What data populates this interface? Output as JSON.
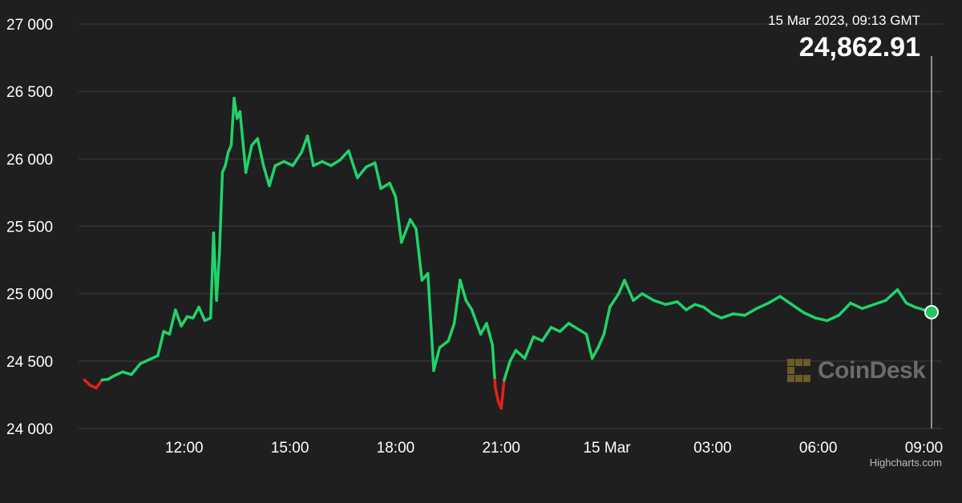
{
  "header": {
    "date": "15 Mar 2023, 09:13 GMT",
    "price": "24,862.91"
  },
  "watermark": {
    "text": "CoinDesk",
    "icon": "coindesk-logo-icon"
  },
  "credit": "Highcharts.com",
  "colors": {
    "background": "#1f1f1f",
    "line_up": "#20d36a",
    "line_down": "#e5201e",
    "marker_fill": "#23c55e",
    "gridline": "#3d3d3d"
  },
  "chart_data": {
    "type": "line",
    "title": "",
    "xlabel": "",
    "ylabel": "",
    "ylim": [
      24000,
      27000
    ],
    "xlim": [
      "2023-03-14 09:00",
      "2023-03-15 09:13"
    ],
    "grid": true,
    "legend": "none",
    "yticks": [
      {
        "value": 24000,
        "label": "24 000"
      },
      {
        "value": 24500,
        "label": "24 500"
      },
      {
        "value": 25000,
        "label": "25 000"
      },
      {
        "value": 25500,
        "label": "25 500"
      },
      {
        "value": 26000,
        "label": "26 000"
      },
      {
        "value": 26500,
        "label": "26 500"
      },
      {
        "value": 27000,
        "label": "27 000"
      }
    ],
    "xticks": [
      {
        "value": "2023-03-14 12:00",
        "label": "12:00"
      },
      {
        "value": "2023-03-14 15:00",
        "label": "15:00"
      },
      {
        "value": "2023-03-14 18:00",
        "label": "18:00"
      },
      {
        "value": "2023-03-14 21:00",
        "label": "21:00"
      },
      {
        "value": "2023-03-15 00:00",
        "label": "15 Mar"
      },
      {
        "value": "2023-03-15 03:00",
        "label": "03:00"
      },
      {
        "value": "2023-03-15 06:00",
        "label": "06:00"
      },
      {
        "value": "2023-03-15 09:00",
        "label": "09:00"
      }
    ],
    "threshold": 24360,
    "series": [
      {
        "points": [
          [
            "2023-03-14 09:10",
            24360
          ],
          [
            "2023-03-14 09:20",
            24320
          ],
          [
            "2023-03-14 09:30",
            24300
          ],
          [
            "2023-03-14 09:40",
            24360
          ],
          [
            "2023-03-14 09:50",
            24365
          ],
          [
            "2023-03-14 10:00",
            24390
          ],
          [
            "2023-03-14 10:15",
            24420
          ],
          [
            "2023-03-14 10:30",
            24400
          ],
          [
            "2023-03-14 10:45",
            24480
          ],
          [
            "2023-03-14 11:00",
            24510
          ],
          [
            "2023-03-14 11:15",
            24540
          ],
          [
            "2023-03-14 11:25",
            24720
          ],
          [
            "2023-03-14 11:35",
            24700
          ],
          [
            "2023-03-14 11:45",
            24880
          ],
          [
            "2023-03-14 11:55",
            24760
          ],
          [
            "2023-03-14 12:05",
            24830
          ],
          [
            "2023-03-14 12:15",
            24820
          ],
          [
            "2023-03-14 12:25",
            24900
          ],
          [
            "2023-03-14 12:35",
            24800
          ],
          [
            "2023-03-14 12:45",
            24820
          ],
          [
            "2023-03-14 12:50",
            25450
          ],
          [
            "2023-03-14 12:55",
            24950
          ],
          [
            "2023-03-14 13:00",
            25300
          ],
          [
            "2023-03-14 13:05",
            25900
          ],
          [
            "2023-03-14 13:10",
            25950
          ],
          [
            "2023-03-14 13:15",
            26050
          ],
          [
            "2023-03-14 13:20",
            26100
          ],
          [
            "2023-03-14 13:25",
            26450
          ],
          [
            "2023-03-14 13:30",
            26300
          ],
          [
            "2023-03-14 13:35",
            26350
          ],
          [
            "2023-03-14 13:45",
            25900
          ],
          [
            "2023-03-14 13:55",
            26100
          ],
          [
            "2023-03-14 14:05",
            26150
          ],
          [
            "2023-03-14 14:15",
            25950
          ],
          [
            "2023-03-14 14:25",
            25800
          ],
          [
            "2023-03-14 14:35",
            25950
          ],
          [
            "2023-03-14 14:50",
            25980
          ],
          [
            "2023-03-14 15:05",
            25950
          ],
          [
            "2023-03-14 15:20",
            26050
          ],
          [
            "2023-03-14 15:30",
            26170
          ],
          [
            "2023-03-14 15:40",
            25950
          ],
          [
            "2023-03-14 15:55",
            25980
          ],
          [
            "2023-03-14 16:10",
            25950
          ],
          [
            "2023-03-14 16:25",
            25990
          ],
          [
            "2023-03-14 16:40",
            26060
          ],
          [
            "2023-03-14 16:55",
            25860
          ],
          [
            "2023-03-14 17:10",
            25940
          ],
          [
            "2023-03-14 17:25",
            25970
          ],
          [
            "2023-03-14 17:35",
            25780
          ],
          [
            "2023-03-14 17:50",
            25820
          ],
          [
            "2023-03-14 18:00",
            25720
          ],
          [
            "2023-03-14 18:10",
            25380
          ],
          [
            "2023-03-14 18:25",
            25550
          ],
          [
            "2023-03-14 18:35",
            25480
          ],
          [
            "2023-03-14 18:45",
            25100
          ],
          [
            "2023-03-14 18:55",
            25150
          ],
          [
            "2023-03-14 19:05",
            24430
          ],
          [
            "2023-03-14 19:15",
            24600
          ],
          [
            "2023-03-14 19:30",
            24650
          ],
          [
            "2023-03-14 19:40",
            24780
          ],
          [
            "2023-03-14 19:50",
            25100
          ],
          [
            "2023-03-14 20:00",
            24950
          ],
          [
            "2023-03-14 20:10",
            24880
          ],
          [
            "2023-03-14 20:25",
            24700
          ],
          [
            "2023-03-14 20:35",
            24780
          ],
          [
            "2023-03-14 20:45",
            24620
          ],
          [
            "2023-03-14 20:50",
            24300
          ],
          [
            "2023-03-14 20:55",
            24200
          ],
          [
            "2023-03-14 21:00",
            24150
          ],
          [
            "2023-03-14 21:05",
            24360
          ],
          [
            "2023-03-14 21:15",
            24500
          ],
          [
            "2023-03-14 21:25",
            24580
          ],
          [
            "2023-03-14 21:40",
            24520
          ],
          [
            "2023-03-14 21:55",
            24680
          ],
          [
            "2023-03-14 22:10",
            24650
          ],
          [
            "2023-03-14 22:25",
            24750
          ],
          [
            "2023-03-14 22:40",
            24720
          ],
          [
            "2023-03-14 22:55",
            24780
          ],
          [
            "2023-03-14 23:10",
            24740
          ],
          [
            "2023-03-14 23:25",
            24700
          ],
          [
            "2023-03-14 23:35",
            24520
          ],
          [
            "2023-03-14 23:45",
            24600
          ],
          [
            "2023-03-14 23:55",
            24700
          ],
          [
            "2023-03-15 00:05",
            24900
          ],
          [
            "2023-03-15 00:20",
            25000
          ],
          [
            "2023-03-15 00:30",
            25100
          ],
          [
            "2023-03-15 00:45",
            24950
          ],
          [
            "2023-03-15 01:00",
            25000
          ],
          [
            "2023-03-15 01:20",
            24950
          ],
          [
            "2023-03-15 01:40",
            24920
          ],
          [
            "2023-03-15 02:00",
            24940
          ],
          [
            "2023-03-15 02:15",
            24880
          ],
          [
            "2023-03-15 02:30",
            24920
          ],
          [
            "2023-03-15 02:45",
            24900
          ],
          [
            "2023-03-15 03:00",
            24850
          ],
          [
            "2023-03-15 03:15",
            24820
          ],
          [
            "2023-03-15 03:35",
            24850
          ],
          [
            "2023-03-15 03:55",
            24840
          ],
          [
            "2023-03-15 04:15",
            24890
          ],
          [
            "2023-03-15 04:35",
            24930
          ],
          [
            "2023-03-15 04:55",
            24980
          ],
          [
            "2023-03-15 05:15",
            24920
          ],
          [
            "2023-03-15 05:35",
            24860
          ],
          [
            "2023-03-15 05:55",
            24820
          ],
          [
            "2023-03-15 06:15",
            24800
          ],
          [
            "2023-03-15 06:35",
            24840
          ],
          [
            "2023-03-15 06:55",
            24930
          ],
          [
            "2023-03-15 07:15",
            24890
          ],
          [
            "2023-03-15 07:35",
            24920
          ],
          [
            "2023-03-15 07:55",
            24950
          ],
          [
            "2023-03-15 08:15",
            25030
          ],
          [
            "2023-03-15 08:30",
            24930
          ],
          [
            "2023-03-15 08:45",
            24900
          ],
          [
            "2023-03-15 09:00",
            24880
          ],
          [
            "2023-03-15 09:13",
            24862.91
          ]
        ]
      }
    ]
  }
}
